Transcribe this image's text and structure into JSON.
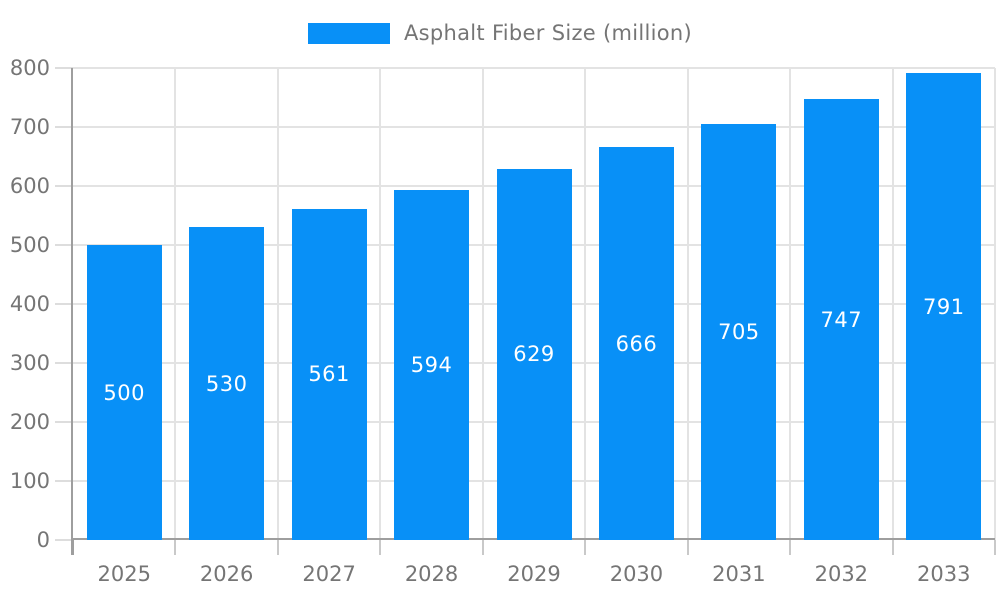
{
  "page": {
    "background": "#ffffff"
  },
  "legend": {
    "label": "Asphalt Fiber Size (million)"
  },
  "chart_data": {
    "type": "bar",
    "title": "Asphalt Fiber Size (million)",
    "series_name": "Asphalt Fiber Size (million)",
    "categories": [
      "2025",
      "2026",
      "2027",
      "2028",
      "2029",
      "2030",
      "2031",
      "2032",
      "2033"
    ],
    "values": [
      500,
      530,
      561,
      594,
      629,
      666,
      705,
      747,
      791
    ],
    "xlabel": "",
    "ylabel": "",
    "ylim": [
      0,
      800
    ],
    "ytick_step": 100,
    "ytick_labels": [
      "0",
      "100",
      "200",
      "300",
      "400",
      "500",
      "600",
      "700",
      "800"
    ],
    "grid": true,
    "legend_position": "top",
    "value_labels_inside_bars": true,
    "colors": {
      "bar": "#0890f7",
      "gridline": "#e3e3e3",
      "axis_line": "#9e9e9e",
      "minor_tick": "#c9c9c9",
      "axis_label": "#757575",
      "value_label": "#ffffff",
      "legend_text": "#757575",
      "background": "#ffffff"
    }
  }
}
